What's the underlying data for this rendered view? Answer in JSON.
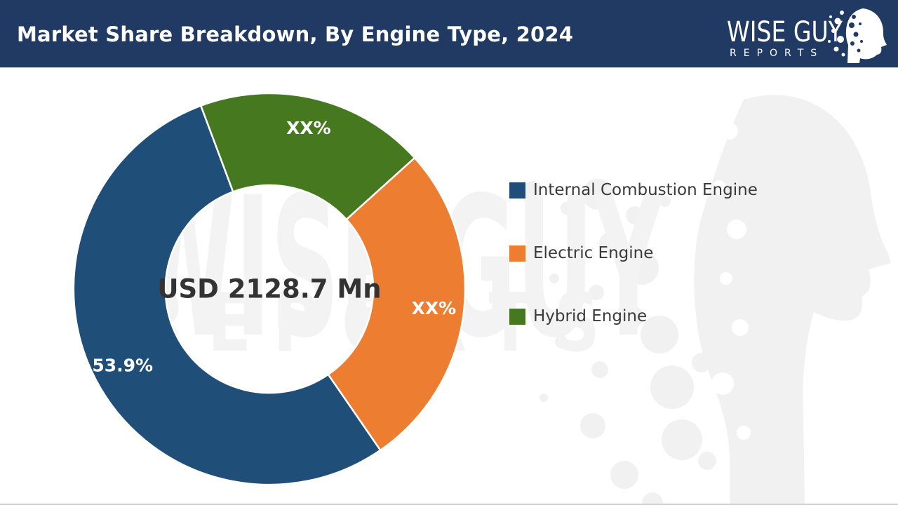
{
  "header": {
    "title": "Market Share Breakdown, By Engine Type, 2024",
    "bg_color": "#203A63",
    "logo": {
      "line1": "WISE GUY",
      "line2": "REPORTS"
    }
  },
  "watermark": {
    "line1": "WISE GUY",
    "line2": "R E P O R T S"
  },
  "chart_data": {
    "type": "pie",
    "subtype": "donut",
    "title": "Market Share Breakdown, By Engine Type, 2024",
    "center_label": "USD 2128.7 Mn",
    "start_angle_deg": 110.5,
    "direction": "counterclockwise",
    "legend_position": "right",
    "segments": [
      {
        "label": "Internal Combustion Engine",
        "value": 53.9,
        "display": "53.9%",
        "color": "#1F4E79"
      },
      {
        "label": "Electric Engine",
        "value": 27.1,
        "display": "XX%",
        "color": "#ED7D31"
      },
      {
        "label": "Hybrid Engine",
        "value": 19.0,
        "display": "XX%",
        "color": "#46791F"
      }
    ]
  },
  "legend": {
    "items": [
      {
        "label": "Internal Combustion Engine",
        "color": "#1F4E79"
      },
      {
        "label": "Electric Engine",
        "color": "#ED7D31"
      },
      {
        "label": "Hybrid Engine",
        "color": "#46791F"
      }
    ]
  }
}
